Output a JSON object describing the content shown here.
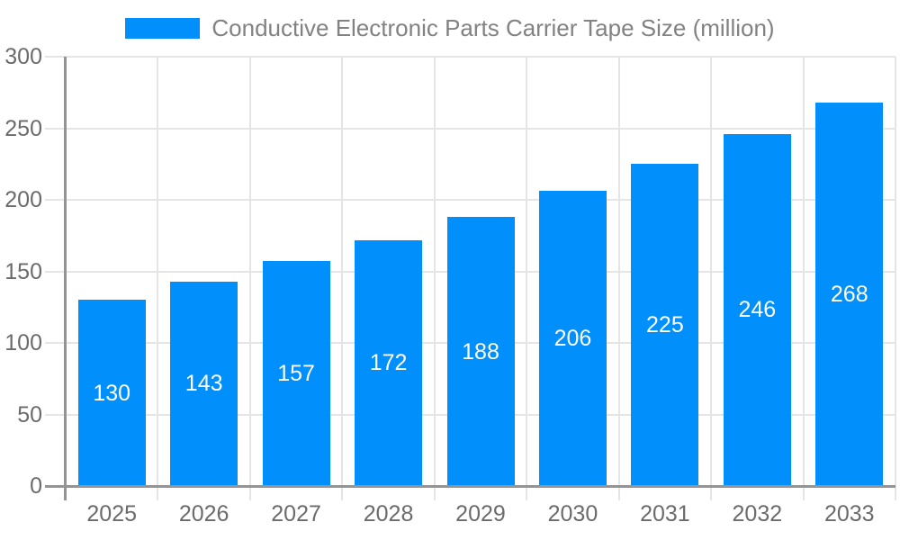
{
  "legend": {
    "label": "Conductive Electronic Parts Carrier Tape Size (million)"
  },
  "colors": {
    "bar": "#008FFB",
    "bar_label": "#ffffff",
    "axis_line": "#949494",
    "grid_line": "#e5e5e5",
    "tick_label": "#6b6b6b",
    "legend_text": "#828282",
    "background": "#ffffff"
  },
  "chart_data": {
    "type": "bar",
    "title": "Conductive Electronic Parts Carrier Tape Size (million)",
    "categories": [
      "2025",
      "2026",
      "2027",
      "2028",
      "2029",
      "2030",
      "2031",
      "2032",
      "2033"
    ],
    "values": [
      130,
      143,
      157,
      172,
      188,
      206,
      225,
      246,
      268
    ],
    "xlabel": "",
    "ylabel": "",
    "ylim": [
      0,
      300
    ],
    "yticks": [
      0,
      50,
      100,
      150,
      200,
      250,
      300
    ],
    "grid": true,
    "legend_position": "top",
    "value_label_position": "inside-center"
  }
}
